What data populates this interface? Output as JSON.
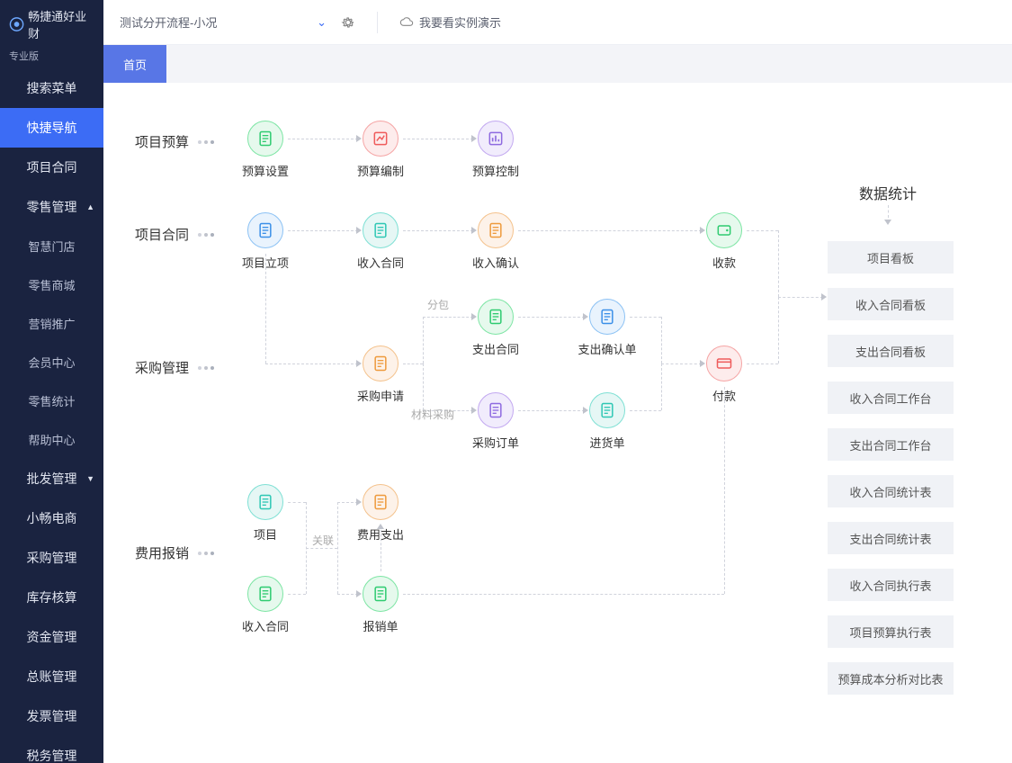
{
  "brand": {
    "name": "畅捷通好业财",
    "edition": "专业版"
  },
  "topbar": {
    "org": "测试分开流程-小况",
    "demo": "我要看实例演示"
  },
  "tabs": {
    "home": "首页"
  },
  "sidebar": {
    "search": "搜索菜单",
    "quick_nav": "快捷导航",
    "project_contract": "项目合同",
    "retail": "零售管理",
    "retail_sub": {
      "smart_store": "智慧门店",
      "retail_mall": "零售商城",
      "marketing": "营销推广",
      "member": "会员中心",
      "retail_stats": "零售统计",
      "help": "帮助中心"
    },
    "wholesale": "批发管理",
    "xc_ecom": "小畅电商",
    "purchase": "采购管理",
    "inventory": "库存核算",
    "funds": "资金管理",
    "ledger": "总账管理",
    "invoice": "发票管理",
    "tax": "税务管理"
  },
  "rows": {
    "budget": "项目预算",
    "contract": "项目合同",
    "purchase": "采购管理",
    "expense": "费用报销"
  },
  "nodes": {
    "budget_settings": "预算设置",
    "budget_compile": "预算编制",
    "budget_control": "预算控制",
    "project_setup": "项目立项",
    "income_contract": "收入合同",
    "income_confirm": "收入确认",
    "receipt": "收款",
    "purchase_req": "采购申请",
    "expense_contract": "支出合同",
    "expense_confirm": "支出确认单",
    "payment": "付款",
    "purchase_order": "采购订单",
    "goods_in": "进货单",
    "project": "项目",
    "expense_out": "费用支出",
    "income_contract2": "收入合同",
    "reimburse": "报销单"
  },
  "mini": {
    "subcontract": "分包",
    "material": "材料采购",
    "link": "关联"
  },
  "stats": {
    "title": "数据统计",
    "items": [
      "项目看板",
      "收入合同看板",
      "支出合同看板",
      "收入合同工作台",
      "支出合同工作台",
      "收入合同统计表",
      "支出合同统计表",
      "收入合同执行表",
      "项目预算执行表",
      "预算成本分析对比表"
    ]
  },
  "colors": {
    "green": {
      "bg": "#e6f9ed",
      "bd": "#7de5a4",
      "fg": "#2ecb70"
    },
    "red": {
      "bg": "#fdecec",
      "bd": "#f5a4a4",
      "fg": "#ef5b5b"
    },
    "purple": {
      "bg": "#f1ecfc",
      "bd": "#c2a8f0",
      "fg": "#8e6ae0"
    },
    "blue": {
      "bg": "#e9f3fd",
      "bd": "#8cc2f4",
      "fg": "#3a8fe8"
    },
    "cyan": {
      "bg": "#e6f7f5",
      "bd": "#7ee0d4",
      "fg": "#2ec7b4"
    },
    "orange": {
      "bg": "#fdf2e9",
      "bd": "#f4c28c",
      "fg": "#ee9a3c"
    }
  }
}
